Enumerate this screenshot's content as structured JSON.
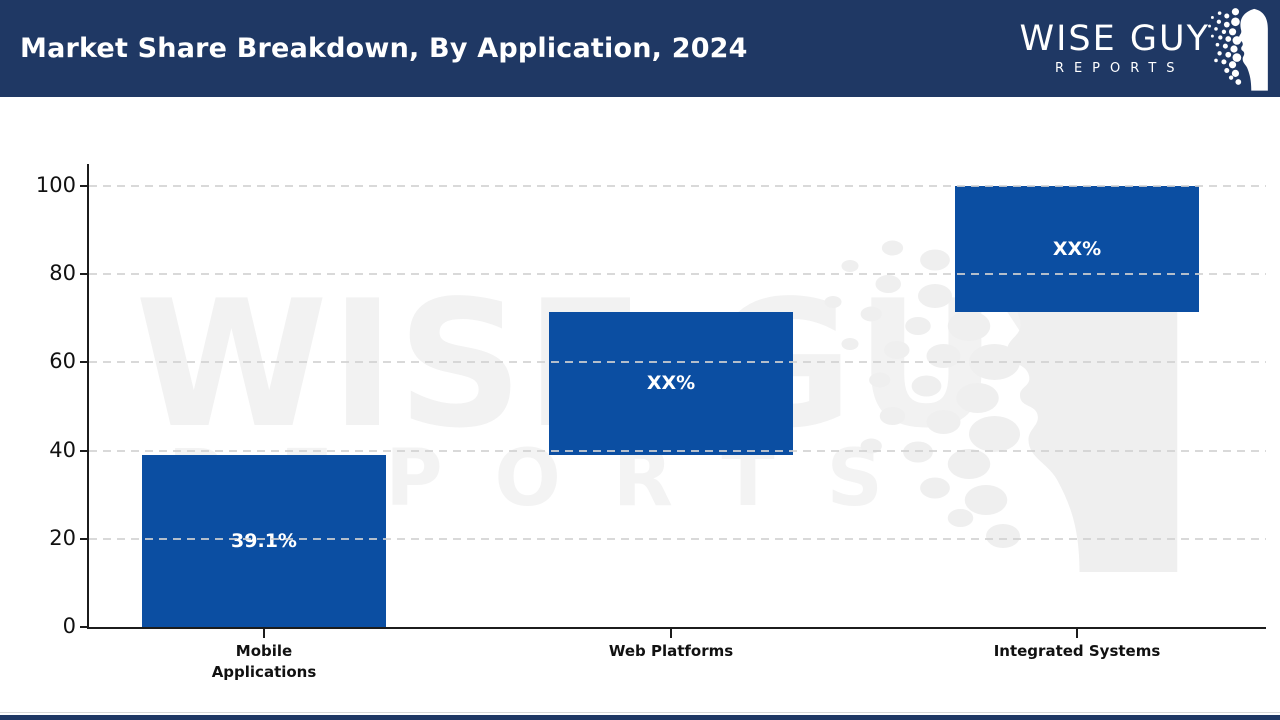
{
  "header": {
    "title": "Market Share Breakdown, By Application, 2024",
    "logo": {
      "line1": "WISE GUY",
      "line2": "REPORTS"
    }
  },
  "watermark": {
    "line1": "WISE GUY",
    "line2": "REPORTS"
  },
  "chart_data": {
    "type": "bar",
    "subtype": "waterfall-floating-bars",
    "title": "Market Share Breakdown, By Application, 2024",
    "categories": [
      "Mobile Applications",
      "Web Platforms",
      "Integrated Systems"
    ],
    "tick_labels": [
      "Mobile\nApplications",
      "Web Platforms",
      "Integrated Systems"
    ],
    "segments": [
      {
        "category": "Mobile Applications",
        "start": 0,
        "end": 39.1,
        "label": "39.1%"
      },
      {
        "category": "Web Platforms",
        "start": 39.1,
        "end": 71.4,
        "label": "XX%"
      },
      {
        "category": "Integrated Systems",
        "start": 71.4,
        "end": 100,
        "label": "XX%"
      }
    ],
    "yticks": [
      0,
      20,
      40,
      60,
      80,
      100
    ],
    "ylim": [
      0,
      105
    ],
    "xlabel": "",
    "ylabel": "",
    "grid": true,
    "gridline_style": "dashed",
    "legend": "none"
  },
  "colors": {
    "header_bg": "#1f3864",
    "bar": "#0b4ea2",
    "bar_label": "#ffffff",
    "axis": "#1c1c1c",
    "grid": "#d2d2d2",
    "watermark": "#f2f2f2",
    "footer_bar": "#1f3864"
  }
}
